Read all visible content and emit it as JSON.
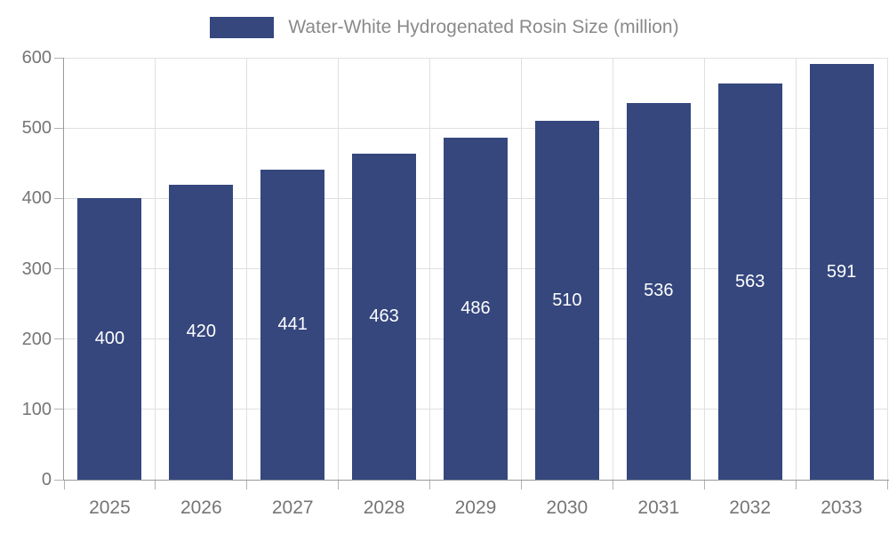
{
  "colors": {
    "background": "#ffffff",
    "bar": "#35477D",
    "grid": "#e0e0e0",
    "axis-line": "#999999",
    "tick": "#b3b3b3",
    "axis-text": "#757575",
    "legend-text": "#8a8a8a",
    "value-text": "#ffffff"
  },
  "chart_data": {
    "type": "bar",
    "title": "",
    "xlabel": "",
    "ylabel": "",
    "categories": [
      "2025",
      "2026",
      "2027",
      "2028",
      "2029",
      "2030",
      "2031",
      "2032",
      "2033"
    ],
    "series": [
      {
        "name": "Water-White Hydrogenated Rosin Size (million)",
        "values": [
          400,
          420,
          441,
          463,
          486,
          510,
          536,
          563,
          591
        ]
      }
    ],
    "ylim": [
      0,
      600
    ],
    "ytick_step": 100,
    "yticks": [
      0,
      100,
      200,
      300,
      400,
      500,
      600
    ],
    "grid": true,
    "legend_position": "top-center",
    "value_labels": "inside-center",
    "bar_band_fraction": 0.7
  }
}
